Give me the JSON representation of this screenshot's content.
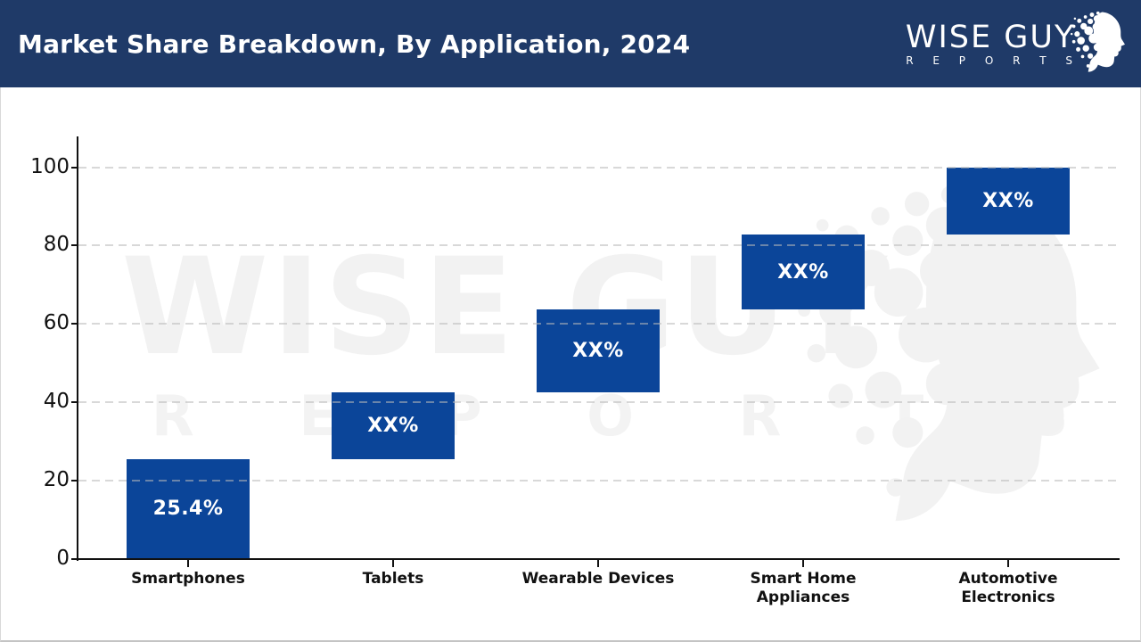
{
  "header": {
    "title": "Market Share Breakdown, By Application, 2024",
    "logo": {
      "name": "WISE GUY",
      "sub": "R E P O R T S"
    },
    "bg_color": "#1F3A68"
  },
  "watermark": {
    "line1": "WISE GUY",
    "line2": "R E P O R T S"
  },
  "chart_data": {
    "type": "bar",
    "variant": "waterfall",
    "title": "Market Share Breakdown, By Application, 2024",
    "categories": [
      "Smartphones",
      "Tablets",
      "Wearable Devices",
      "Smart Home Appliances",
      "Automotive Electronics"
    ],
    "category_lines": [
      [
        "Smartphones"
      ],
      [
        "Tablets"
      ],
      [
        "Wearable Devices"
      ],
      [
        "Smart Home",
        "Appliances"
      ],
      [
        "Automotive",
        "Electronics"
      ]
    ],
    "segments": [
      {
        "category": "Smartphones",
        "start": 0,
        "end": 25.4,
        "label": "25.4%"
      },
      {
        "category": "Tablets",
        "start": 25.4,
        "end": 42.4,
        "label": "XX%"
      },
      {
        "category": "Wearable Devices",
        "start": 42.4,
        "end": 63.6,
        "label": "XX%"
      },
      {
        "category": "Smart Home Appliances",
        "start": 63.6,
        "end": 82.8,
        "label": "XX%"
      },
      {
        "category": "Automotive Electronics",
        "start": 82.8,
        "end": 100,
        "label": "XX%"
      }
    ],
    "yticks": [
      0,
      20,
      40,
      60,
      80,
      100
    ],
    "ylim": [
      0,
      107
    ],
    "xlabel": "",
    "ylabel": "",
    "legend": "none",
    "grid": "horizontal-dashed",
    "bar_color": "#0B4599",
    "bar_label_color": "#FFFFFF",
    "axis_color": "#111111",
    "gridline_color": "#c9c9c9"
  }
}
